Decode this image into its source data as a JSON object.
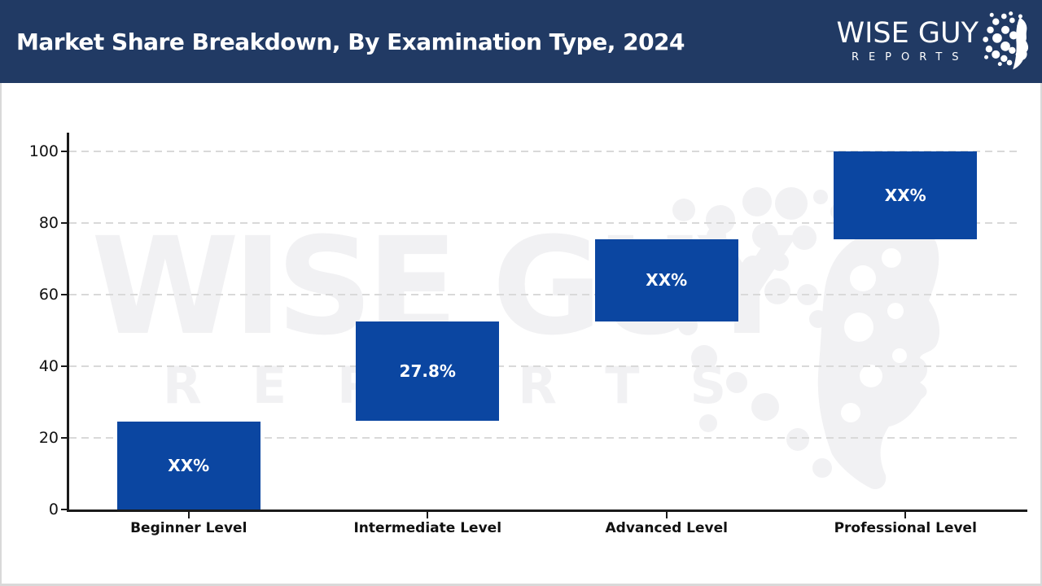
{
  "header": {
    "title": "Market Share Breakdown, By Examination Type, 2024",
    "logo": {
      "line1": "WISE GUY",
      "line2": "REPORTS"
    }
  },
  "watermark": {
    "line1": "WISE GUY",
    "line2": "REPORTS"
  },
  "colors": {
    "header_bg": "#213a64",
    "bar_fill": "#0b46a1",
    "bar_label": "#ffffff",
    "grid": "#d9d9d9",
    "watermark": "#f1f1f3",
    "axis": "#1a1a1a"
  },
  "chart_data": {
    "type": "bar",
    "subtype": "floating-waterfall",
    "title": "Market Share Breakdown, By Examination Type, 2024",
    "categories": [
      "Beginner Level",
      "Intermediate Level",
      "Advanced Level",
      "Professional Level"
    ],
    "bars": [
      {
        "category": "Beginner Level",
        "base": 0,
        "top": 24.5,
        "label": "XX%"
      },
      {
        "category": "Intermediate Level",
        "base": 24.7,
        "top": 52.5,
        "label": "27.8%"
      },
      {
        "category": "Advanced Level",
        "base": 52.5,
        "top": 75.5,
        "label": "XX%"
      },
      {
        "category": "Professional Level",
        "base": 75.5,
        "top": 100,
        "label": "XX%"
      }
    ],
    "yticks": [
      0,
      20,
      40,
      60,
      80,
      100
    ],
    "ylim": [
      0,
      105
    ],
    "xlabel": "",
    "ylabel": "",
    "grid": "horizontal-dashed",
    "legend": "none"
  }
}
